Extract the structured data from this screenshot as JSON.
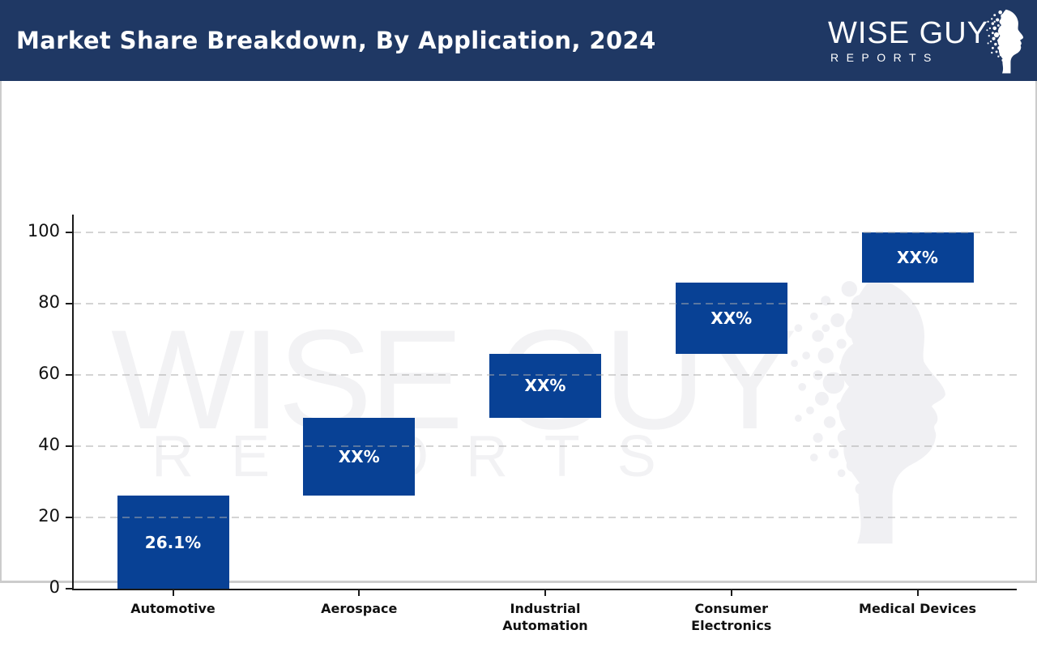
{
  "header": {
    "title": "Market Share Breakdown, By Application, 2024",
    "brand": {
      "line1": "WISE GUY",
      "line2": "REPORTS"
    }
  },
  "watermark": {
    "line1": "WISE GUY",
    "line2": "REPORTS"
  },
  "colors": {
    "header_bg": "#1f3864",
    "bar": "#084195",
    "bar_label": "#ffffff",
    "axis": "#1a1a1a",
    "grid": "rgba(170,170,170,0.5)",
    "watermark": "#f2f2f4",
    "page_border": "#cccccc"
  },
  "chart_data": {
    "type": "bar",
    "subtype": "waterfall",
    "title": "Market Share Breakdown, By Application, 2024",
    "categories": [
      "Automotive",
      "Aerospace",
      "Industrial Automation",
      "Consumer Electronics",
      "Medical Devices"
    ],
    "tick_lines": [
      [
        "Automotive"
      ],
      [
        "Aerospace"
      ],
      [
        "Industrial",
        "Automation"
      ],
      [
        "Consumer",
        "Electronics"
      ],
      [
        "Medical Devices"
      ]
    ],
    "series": [
      {
        "name": "Market Share (%)",
        "segments": [
          {
            "category": "Automotive",
            "start": 0,
            "end": 26.1,
            "label": "26.1%"
          },
          {
            "category": "Aerospace",
            "start": 26.1,
            "end": 48,
            "label": "XX%"
          },
          {
            "category": "Industrial Automation",
            "start": 48,
            "end": 66,
            "label": "XX%"
          },
          {
            "category": "Consumer Electronics",
            "start": 66,
            "end": 86,
            "label": "XX%"
          },
          {
            "category": "Medical Devices",
            "start": 86,
            "end": 100,
            "label": "XX%"
          }
        ]
      }
    ],
    "xlabel": "",
    "ylabel": "",
    "ylim": [
      0,
      100
    ],
    "yticks": [
      0,
      20,
      40,
      60,
      80,
      100
    ],
    "grid": "horizontal-dashed",
    "legend": "none"
  }
}
